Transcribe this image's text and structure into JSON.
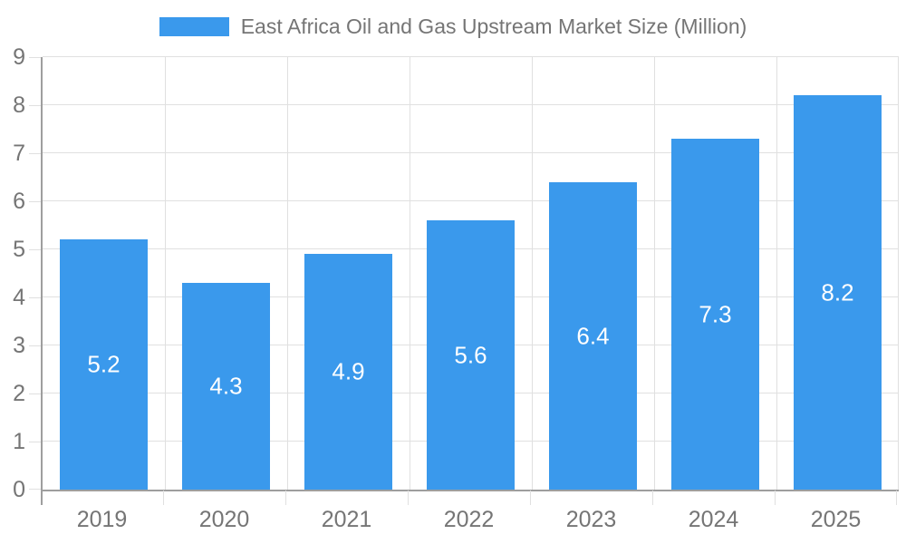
{
  "chart_data": {
    "type": "bar",
    "title": "East Africa Oil and Gas Upstream Market Size (Million)",
    "categories": [
      "2019",
      "2020",
      "2021",
      "2022",
      "2023",
      "2024",
      "2025"
    ],
    "values": [
      5.2,
      4.3,
      4.9,
      5.6,
      6.4,
      7.3,
      8.2
    ],
    "value_labels": [
      "5.2",
      "4.3",
      "4.9",
      "5.6",
      "6.4",
      "7.3",
      "8.2"
    ],
    "xlabel": "",
    "ylabel": "",
    "ylim": [
      0,
      9
    ],
    "yticks": [
      0,
      1,
      2,
      3,
      4,
      5,
      6,
      7,
      8,
      9
    ],
    "grid": true,
    "legend_position": "top",
    "colors": {
      "bar": "#3A99EC",
      "value_label": "#FFFFFF",
      "axis_text": "#757575",
      "gridline": "#E0E0E0",
      "axis_line": "#9E9E9E",
      "background": "#FFFFFF"
    }
  }
}
